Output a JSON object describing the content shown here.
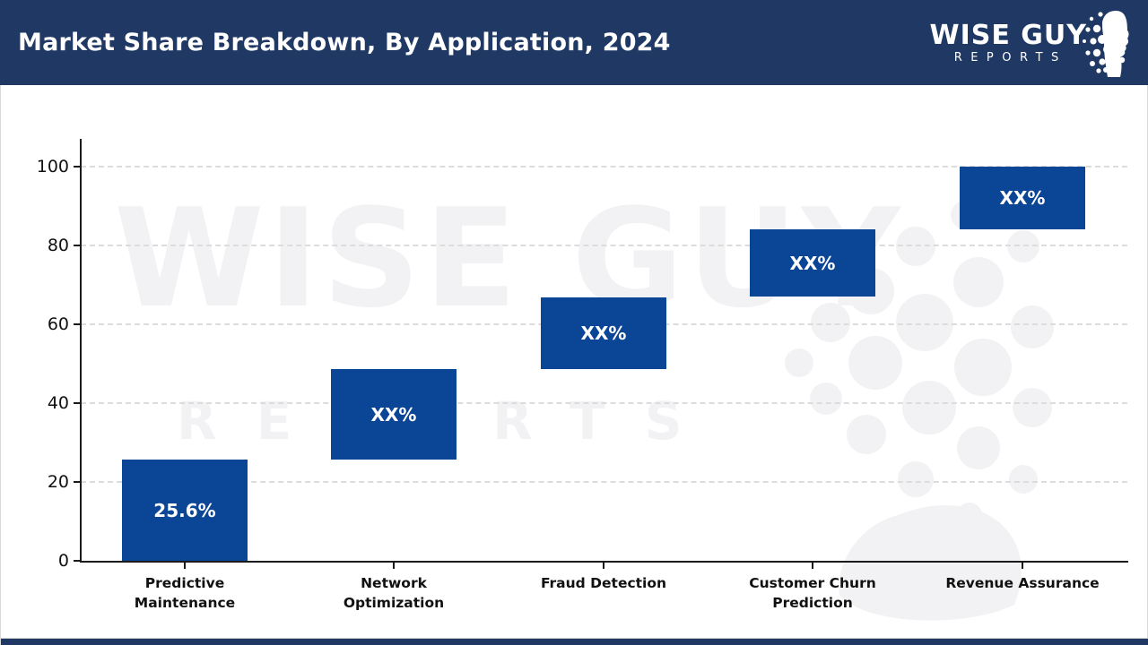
{
  "header": {
    "title": "Market Share Breakdown, By Application, 2024",
    "logo": {
      "line1": "WISE GUY",
      "line2": "REPORTS"
    }
  },
  "watermark": {
    "line1": "WISE GUY",
    "line2": "REPORTS"
  },
  "colors": {
    "header_bg": "#1f3864",
    "bar": "#0b4596",
    "bar_label": "#ffffff",
    "grid": "#dcdcdc",
    "axis": "#1a1a1a",
    "watermark": "#f2f2f4"
  },
  "chart_data": {
    "type": "bar",
    "subtype": "waterfall-floating-bars",
    "title": "Market Share Breakdown, By Application, 2024",
    "categories": [
      "Predictive\nMaintenance",
      "Network\nOptimization",
      "Fraud Detection",
      "Customer Churn\nPrediction",
      "Revenue Assurance"
    ],
    "bars": [
      {
        "category": "Predictive Maintenance",
        "label": "25.6%",
        "start": 0,
        "end": 25.6
      },
      {
        "category": "Network Optimization",
        "label": "XX%",
        "start": 25.6,
        "end": 48.6
      },
      {
        "category": "Fraud Detection",
        "label": "XX%",
        "start": 48.6,
        "end": 66.8
      },
      {
        "category": "Customer Churn Prediction",
        "label": "XX%",
        "start": 67,
        "end": 84
      },
      {
        "category": "Revenue Assurance",
        "label": "XX%",
        "start": 84,
        "end": 100
      }
    ],
    "xlabel": "",
    "ylabel": "",
    "yticks": [
      0,
      20,
      40,
      60,
      80,
      100
    ],
    "ylim": [
      0,
      100
    ],
    "grid": "horizontal-dashed",
    "legend": "none"
  }
}
